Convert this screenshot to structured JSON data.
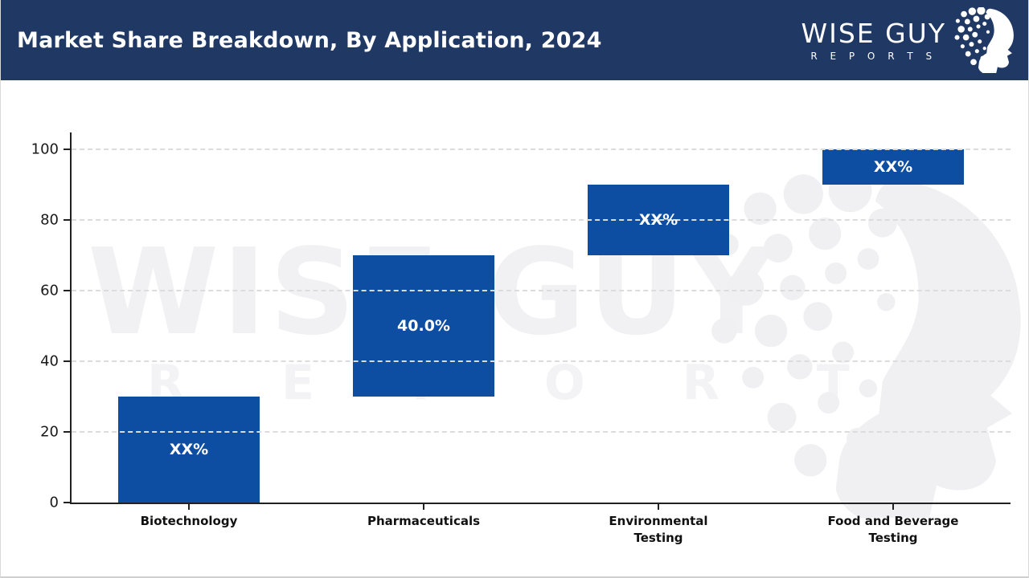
{
  "header": {
    "title": "Market Share Breakdown, By Application, 2024",
    "logo": {
      "line1": "WISE GUY",
      "line2": "R E P O R T S"
    }
  },
  "watermark": {
    "line1": "WISE GUY",
    "line2": "R E P O R T S"
  },
  "chart_data": {
    "type": "bar",
    "subtype": "waterfall",
    "title": "Market Share Breakdown, By Application, 2024",
    "categories": [
      "Biotechnology",
      "Pharmaceuticals",
      "Environmental\nTesting",
      "Food and Beverage\nTesting"
    ],
    "segments": [
      {
        "category": "Biotechnology",
        "start": 0,
        "end": 30,
        "value": 30,
        "label": "XX%"
      },
      {
        "category": "Pharmaceuticals",
        "start": 30,
        "end": 70,
        "value": 40,
        "label": "40.0%"
      },
      {
        "category": "Environmental Testing",
        "start": 70,
        "end": 90,
        "value": 20,
        "label": "XX%"
      },
      {
        "category": "Food and Beverage Testing",
        "start": 90,
        "end": 100,
        "value": 10,
        "label": "XX%"
      }
    ],
    "yticks": [
      0,
      20,
      40,
      60,
      80,
      100
    ],
    "ylim": [
      0,
      105
    ],
    "xlabel": "",
    "ylabel": "",
    "grid": "horizontal dashed",
    "legend": "none",
    "bar_color": "#0d4da2",
    "bar_label_color": "#ffffff",
    "header_color": "#203864"
  }
}
